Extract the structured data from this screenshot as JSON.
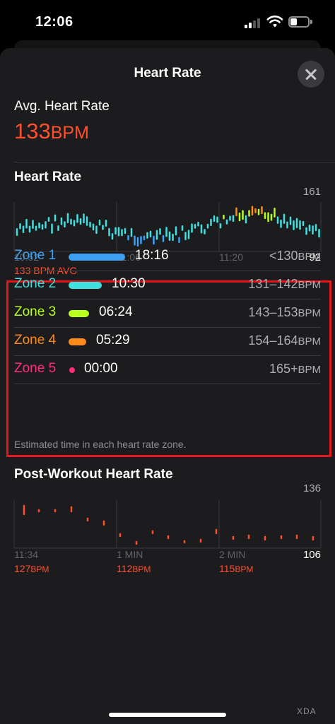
{
  "status_bar": {
    "time": "12:06"
  },
  "header": {
    "title": "Heart Rate"
  },
  "summary": {
    "label": "Avg. Heart Rate",
    "value": "133",
    "unit": "BPM"
  },
  "hr_chart": {
    "title": "Heart Rate",
    "y_max_label": "161",
    "y_min_label": "92",
    "x_ticks": [
      "10:52",
      "11:06",
      "11:20"
    ],
    "avg_label": "133 BPM AVG"
  },
  "zones": {
    "rows": [
      {
        "name": "Zone 1",
        "time": "18:16",
        "range": "<130",
        "unit": "BPM",
        "fraction": 0.41,
        "color": "#3ea0f5"
      },
      {
        "name": "Zone 2",
        "time": "10:30",
        "range": "131–142",
        "unit": "BPM",
        "fraction": 0.24,
        "color": "#40e0e0"
      },
      {
        "name": "Zone 3",
        "time": "06:24",
        "range": "143–153",
        "unit": "BPM",
        "fraction": 0.15,
        "color": "#b6ff1e"
      },
      {
        "name": "Zone 4",
        "time": "05:29",
        "range": "154–164",
        "unit": "BPM",
        "fraction": 0.13,
        "color": "#ff8c1a"
      },
      {
        "name": "Zone 5",
        "time": "00:00",
        "range": "165+",
        "unit": "BPM",
        "fraction": 0.0,
        "color": "#ff2d7a"
      }
    ],
    "note": "Estimated time in each heart rate zone."
  },
  "post_chart": {
    "title": "Post-Workout Heart Rate",
    "y_max_label": "136",
    "y_min_label": "106",
    "x_ticks": [
      "11:34",
      "1 MIN",
      "2 MIN"
    ],
    "values": [
      {
        "value": "127",
        "unit": "BPM"
      },
      {
        "value": "112",
        "unit": "BPM"
      },
      {
        "value": "115",
        "unit": "BPM"
      }
    ]
  },
  "watermark": "XDA",
  "colors": {
    "accent_red": "#ff4f2d",
    "highlight_box": "#e5161d",
    "sheet_bg": "#1c1c1e"
  }
}
